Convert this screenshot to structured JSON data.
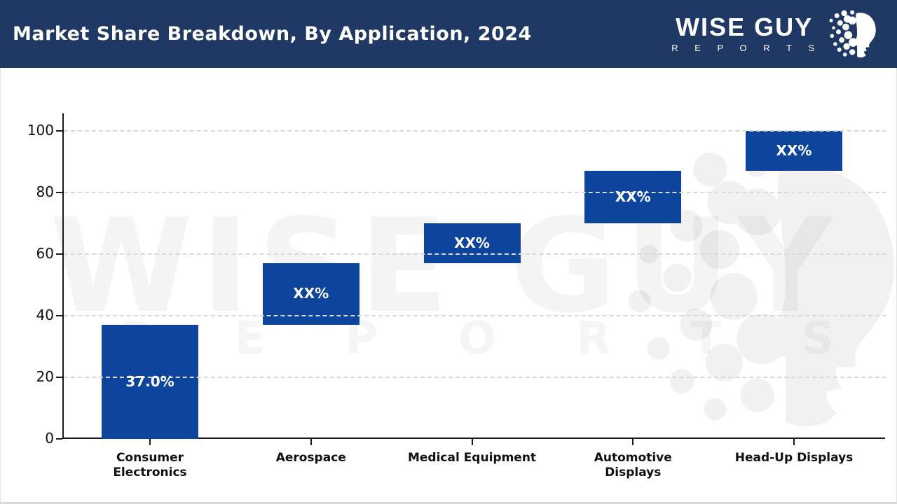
{
  "header": {
    "title": "Market Share Breakdown, By Application, 2024",
    "bg_color": "#1f3864",
    "logo": {
      "line1": "WISE GUY",
      "line2": "R E P O R T S",
      "face_icon": "dotted-face-profile"
    }
  },
  "watermark": {
    "line1": "WISE GUY",
    "line2": "R E P O R T S"
  },
  "chart_data": {
    "type": "bar",
    "subtype": "waterfall",
    "title": "Market Share Breakdown, By Application, 2024",
    "xlabel": "",
    "ylabel": "",
    "categories": [
      "Consumer Electronics",
      "Aerospace",
      "Medical Equipment",
      "Automotive Displays",
      "Head-Up Displays"
    ],
    "segments": [
      {
        "category": "Consumer Electronics",
        "label_lines": "Consumer\nElectronics",
        "start": 0,
        "end": 37,
        "value_label": "37.0%"
      },
      {
        "category": "Aerospace",
        "label_lines": "Aerospace",
        "start": 37,
        "end": 57,
        "value_label": "XX%"
      },
      {
        "category": "Medical Equipment",
        "label_lines": "Medical Equipment",
        "start": 57,
        "end": 70,
        "value_label": "XX%"
      },
      {
        "category": "Automotive Displays",
        "label_lines": "Automotive\nDisplays",
        "start": 70,
        "end": 87,
        "value_label": "XX%"
      },
      {
        "category": "Head-Up Displays",
        "label_lines": "Head-Up Displays",
        "start": 87,
        "end": 100,
        "value_label": "XX%"
      }
    ],
    "yticks": [
      0,
      20,
      40,
      60,
      80,
      100
    ],
    "ylim": [
      0,
      105.7
    ],
    "grid": true,
    "grid_style": "dashed",
    "grid_color": "#d9d9d9",
    "bar_color": "#0d449c",
    "value_label_color": "#ffffff",
    "axis_color": "#1a1a1a",
    "legend": "none"
  }
}
